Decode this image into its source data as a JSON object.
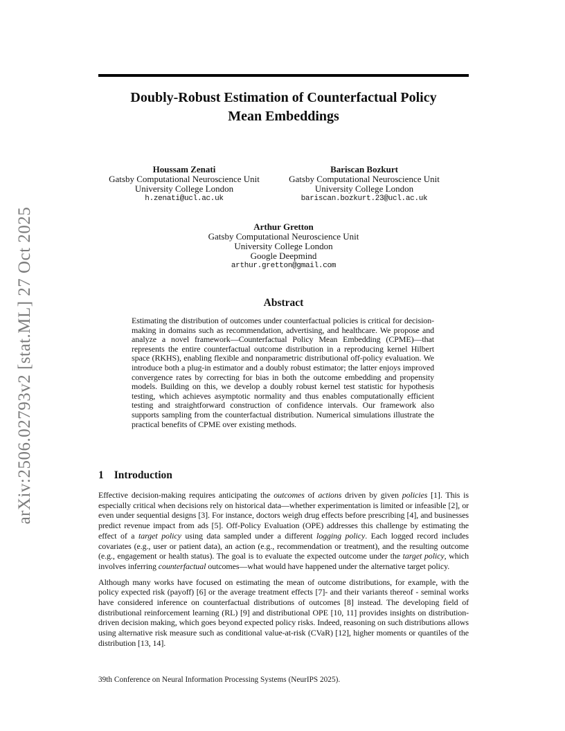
{
  "watermark": {
    "text": "arXiv:2506.02793v2  [stat.ML]  27 Oct 2025"
  },
  "title": {
    "line1": "Doubly-Robust Estimation of Counterfactual Policy",
    "line2": "Mean Embeddings"
  },
  "authors": [
    {
      "name": "Houssam Zenati",
      "aff1": "Gatsby Computational Neuroscience Unit",
      "aff2": "University College London",
      "email": "h.zenati@ucl.ac.uk"
    },
    {
      "name": "Bariscan Bozkurt",
      "aff1": "Gatsby Computational Neuroscience Unit",
      "aff2": "University College London",
      "email": "bariscan.bozkurt.23@ucl.ac.uk"
    },
    {
      "name": "Arthur Gretton",
      "aff1": "Gatsby Computational Neuroscience Unit",
      "aff2": "University College London",
      "aff3": "Google Deepmind",
      "email": "arthur.gretton@gmail.com"
    }
  ],
  "abstract": {
    "heading": "Abstract",
    "text": "Estimating the distribution of outcomes under counterfactual policies is critical for decision-making in domains such as recommendation, advertising, and healthcare. We propose and analyze a novel framework—Counterfactual Policy Mean Embedding (CPME)—that represents the entire counterfactual outcome distribution in a reproducing kernel Hilbert space (RKHS), enabling flexible and nonparametric distributional off-policy evaluation. We introduce both a plug-in estimator and a doubly robust estimator; the latter enjoys improved convergence rates by correcting for bias in both the outcome embedding and propensity models. Building on this, we develop a doubly robust kernel test statistic for hypothesis testing, which achieves asymptotic normality and thus enables computationally efficient testing and straightforward construction of confidence intervals. Our framework also supports sampling from the counterfactual distribution. Numerical simulations illustrate the practical benefits of CPME over existing methods."
  },
  "introduction": {
    "number": "1",
    "heading": "Introduction",
    "p1_html": "Effective decision-making requires anticipating the <i>outcomes</i> of <i>actions</i> driven by given <i>policies</i> [1]. This is especially critical when decisions rely on historical data—whether experimentation is limited or infeasible [2], or even under sequential designs [3]. For instance, doctors weigh drug effects before prescribing [4], and businesses predict revenue impact from ads [5]. Off-Policy Evaluation (OPE) addresses this challenge by estimating the effect of a <i>target policy</i> using data sampled under a different <i>logging policy</i>. Each logged record includes covariates (e.g., user or patient data), an action (e.g., recommendation or treatment), and the resulting outcome (e.g., engagement or health status). The goal is to evaluate the expected outcome under the <i>target policy</i>, which involves inferring <i>counterfactual</i> outcomes—what would have happened under the alternative target policy.",
    "p2_html": "Although many works have focused on estimating the mean of outcome distributions, for example, with the policy expected risk (payoff) [6] or the average treatment effects [7]- and their variants thereof - seminal works have considered inference on counterfactual distributions of outcomes [8] instead. The developing field of distributional reinforcement learning (RL) [9] and distributional OPE [10, 11] provides insights on distribution-driven decision making, which goes beyond expected policy risks. Indeed, reasoning on such distributions allows using alternative risk measure such as conditional value-at-risk (CVaR) [12], higher moments or quantiles of the distribution [13, 14]."
  },
  "footer": {
    "text": "39th Conference on Neural Information Processing Systems (NeurIPS 2025)."
  }
}
